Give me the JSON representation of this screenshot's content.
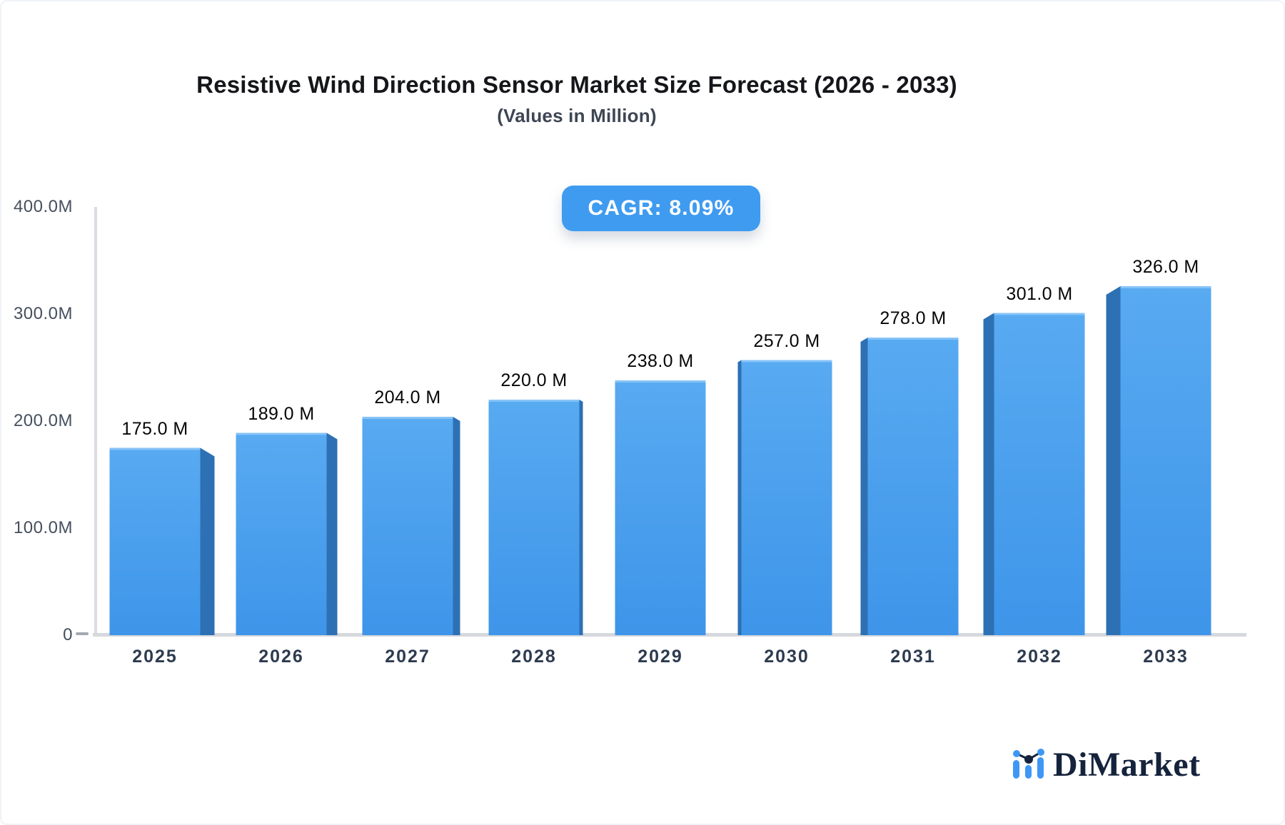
{
  "header": {
    "title": "Resistive Wind Direction Sensor Market Size Forecast (2026 - 2033)",
    "subtitle": "(Values in Million)"
  },
  "badge": {
    "label": "CAGR: 8.09%",
    "color": "#3f9bf0"
  },
  "brand": {
    "name": "DiMarket",
    "icon_color": "#3f97f5",
    "text_color": "#15233c"
  },
  "chart_data": {
    "type": "bar",
    "title": "Resistive Wind Direction Sensor Market Size Forecast (2026 - 2033)",
    "subtitle": "(Values in Million)",
    "cagr": "8.09%",
    "categories": [
      "2025",
      "2026",
      "2027",
      "2028",
      "2029",
      "2030",
      "2031",
      "2032",
      "2033"
    ],
    "values": [
      175.0,
      189.0,
      204.0,
      220.0,
      238.0,
      257.0,
      278.0,
      301.0,
      326.0
    ],
    "value_suffix": " M",
    "y_ticks": [
      {
        "value": 400,
        "label": "400.0M"
      },
      {
        "value": 300,
        "label": "300.0M"
      },
      {
        "value": 200,
        "label": "200.0M"
      },
      {
        "value": 100,
        "label": "100.0M"
      },
      {
        "value": 0,
        "label": "0"
      }
    ],
    "ylim": [
      0,
      400
    ],
    "grid": "off",
    "legend": "none",
    "bar_color_top": "#58aaf1",
    "bar_color_bottom": "#3e95e9",
    "bar_top_highlight": "#85c3f7",
    "bar_side_color": "#2d70b3"
  }
}
